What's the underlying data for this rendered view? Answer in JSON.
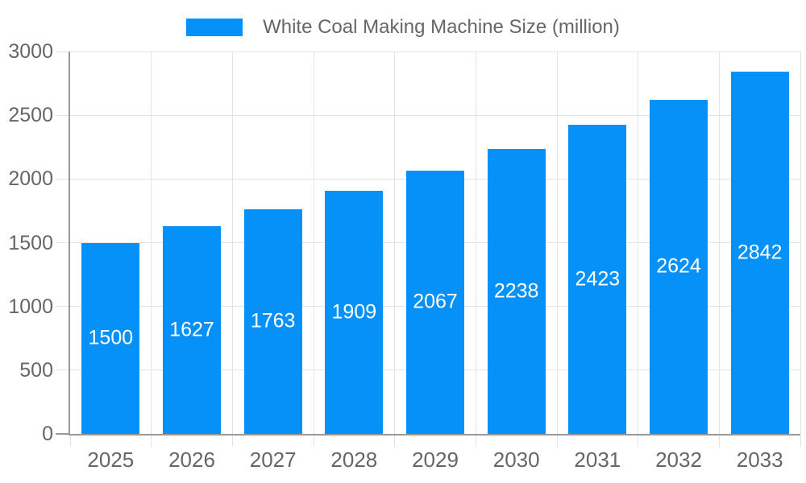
{
  "legend": {
    "label": "White Coal Making Machine Size (million)"
  },
  "colors": {
    "bar": "#0691f9",
    "axis_line": "#999999",
    "gridline": "#e3e3e3",
    "tick_label": "#666666",
    "legend_text": "#666666",
    "value_label": "#ffffff",
    "background": "#ffffff"
  },
  "chart_data": {
    "type": "bar",
    "title": "White Coal Making Machine Size (million)",
    "categories": [
      "2025",
      "2026",
      "2027",
      "2028",
      "2029",
      "2030",
      "2031",
      "2032",
      "2033"
    ],
    "values": [
      1500,
      1627,
      1763,
      1909,
      2067,
      2238,
      2423,
      2624,
      2842
    ],
    "series": [
      {
        "name": "White Coal Making Machine Size (million)",
        "values": [
          1500,
          1627,
          1763,
          1909,
          2067,
          2238,
          2423,
          2624,
          2842
        ]
      }
    ],
    "xlabel": "",
    "ylabel": "",
    "ylim": [
      0,
      3000
    ],
    "yticks": [
      0,
      500,
      1000,
      1500,
      2000,
      2500,
      3000
    ],
    "grid": true,
    "legend_position": "top",
    "value_labels": "inside-center"
  }
}
